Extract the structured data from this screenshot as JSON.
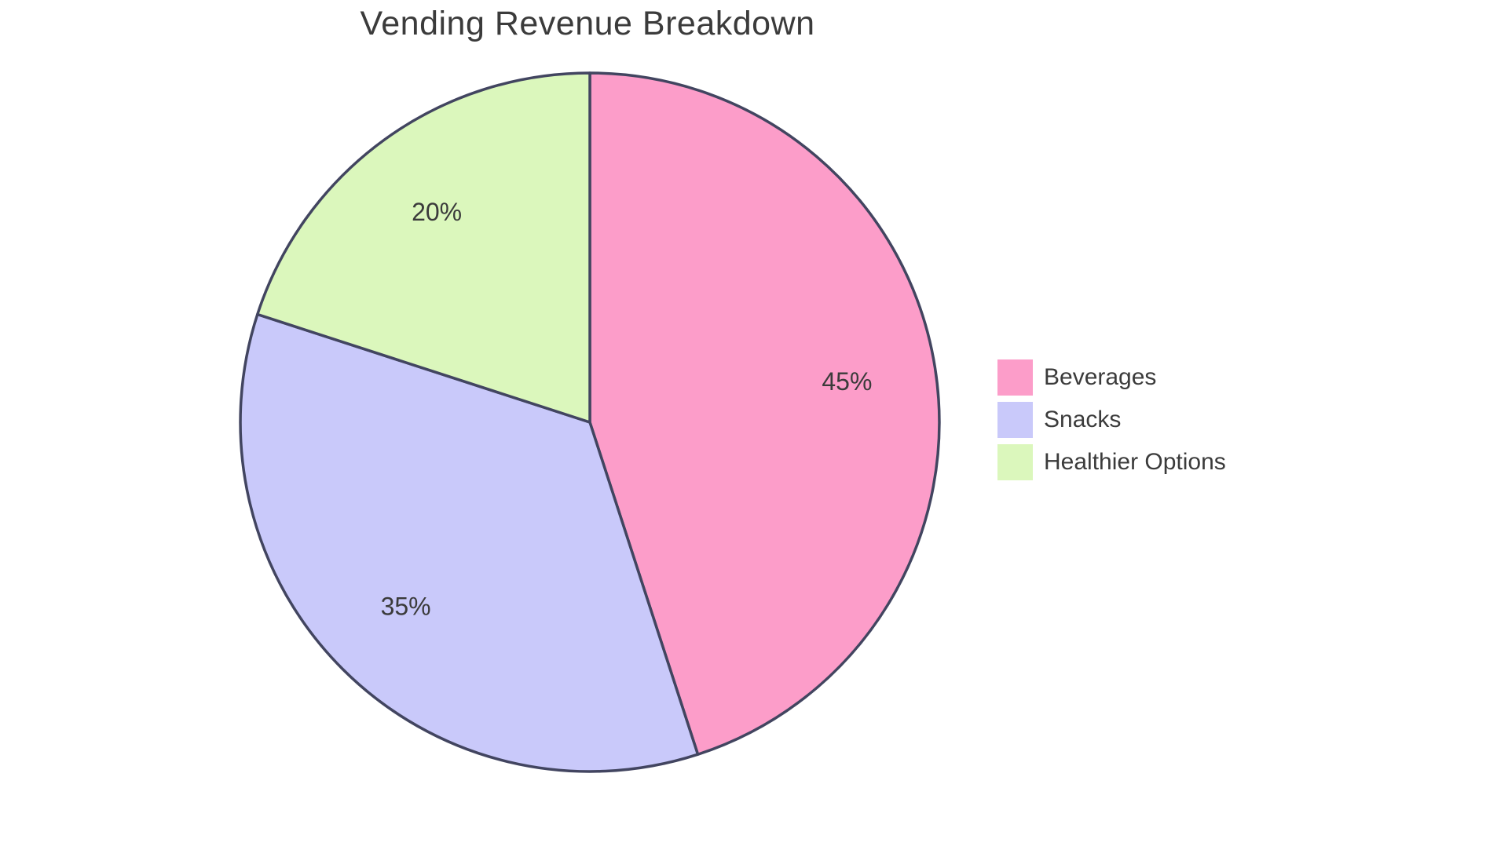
{
  "page": {
    "background": "#FFFFFF"
  },
  "chart_data": {
    "type": "pie",
    "title": "Vending Revenue Breakdown",
    "labels": [
      "Beverages",
      "Snacks",
      "Healthier Options"
    ],
    "values": [
      45,
      35,
      20
    ],
    "slice_labels": [
      "45%",
      "35%",
      "20%"
    ],
    "colors": [
      "#FC9DC9",
      "#C9C9FA",
      "#DBF7BC"
    ],
    "slice_border_color": "#424560",
    "slice_border_width": 3.5,
    "text_color": "#3B3B3B",
    "start_angle_deg": 0,
    "direction": "clockwise",
    "legend_position": "right",
    "grid": false
  }
}
